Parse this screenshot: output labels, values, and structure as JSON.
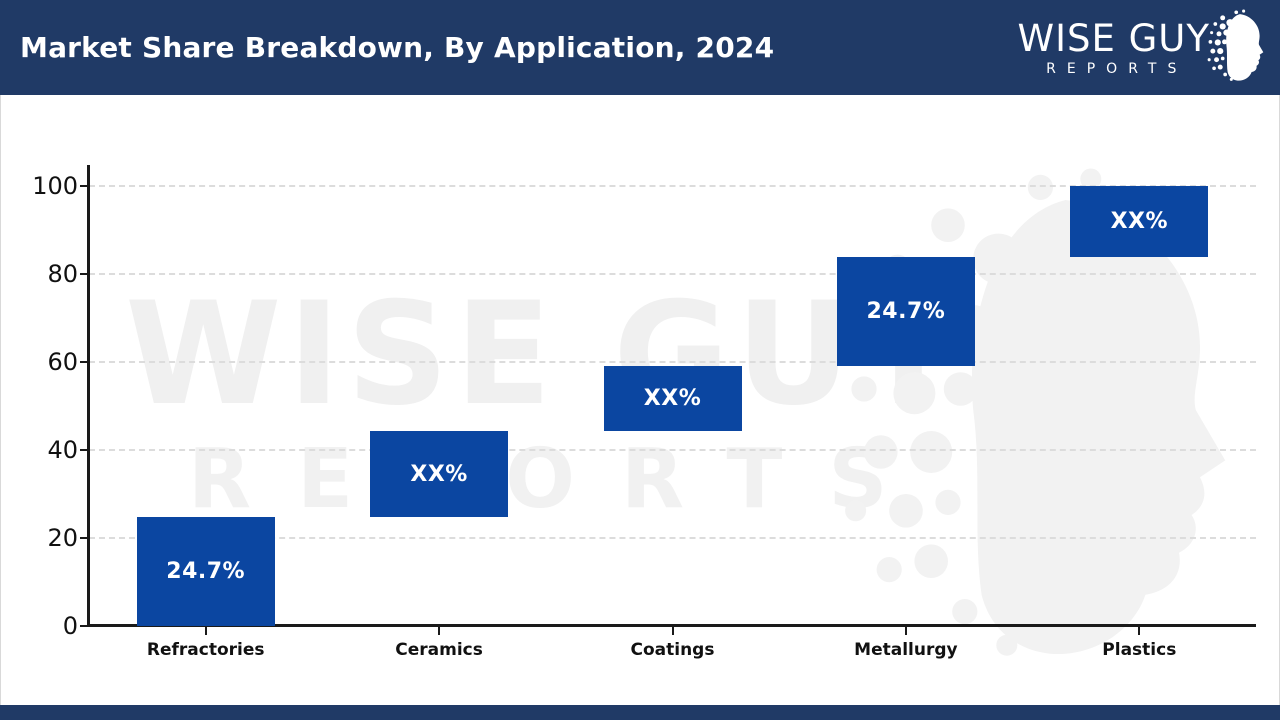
{
  "header": {
    "title": "Market Share Breakdown, By Application, 2024",
    "logo": {
      "line1": "WISE GUY",
      "line2": "REPORTS"
    }
  },
  "watermark": {
    "line1": "WISE GUY",
    "line2": "REPORTS"
  },
  "footer": {},
  "chart_data": {
    "type": "bar",
    "subtype": "waterfall",
    "title": "Market Share Breakdown, By Application, 2024",
    "categories": [
      "Refractories",
      "Ceramics",
      "Coatings",
      "Metallurgy",
      "Plastics"
    ],
    "segments": [
      {
        "category": "Refractories",
        "start": 0,
        "end": 24.7,
        "label": "24.7%"
      },
      {
        "category": "Ceramics",
        "start": 24.7,
        "end": 44.3,
        "label": "XX%"
      },
      {
        "category": "Coatings",
        "start": 44.3,
        "end": 59.2,
        "label": "XX%"
      },
      {
        "category": "Metallurgy",
        "start": 59.2,
        "end": 83.9,
        "label": "24.7%"
      },
      {
        "category": "Plastics",
        "start": 83.9,
        "end": 100,
        "label": "XX%"
      }
    ],
    "yticks": [
      0,
      20,
      40,
      60,
      80,
      100
    ],
    "ylim": [
      0,
      105
    ],
    "xlabel": "",
    "ylabel": "",
    "grid": "horizontal-dashed",
    "legend": "none",
    "bar_color": "#0b46a1",
    "axis_color": "#1a1a1a",
    "gridline_color": "#dcdcdc",
    "header_color": "#203a66",
    "watermark_color": "#f0f0f0"
  }
}
